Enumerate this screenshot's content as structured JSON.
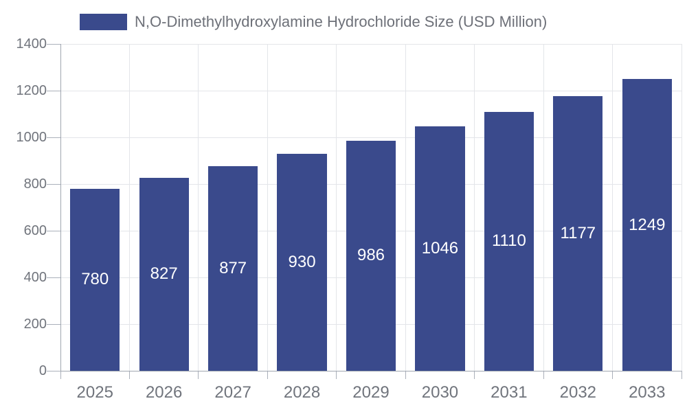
{
  "legend": {
    "label": "N,O-Dimethylhydroxylamine Hydrochloride Size (USD Million)"
  },
  "chart_data": {
    "type": "bar",
    "title": "N,O-Dimethylhydroxylamine Hydrochloride Size (USD Million)",
    "categories": [
      "2025",
      "2026",
      "2027",
      "2028",
      "2029",
      "2030",
      "2031",
      "2032",
      "2033"
    ],
    "values": [
      780,
      827,
      877,
      930,
      986,
      1046,
      1110,
      1177,
      1249
    ],
    "xlabel": "",
    "ylabel": "",
    "ylim": [
      0,
      1400
    ],
    "y_ticks": [
      0,
      200,
      400,
      600,
      800,
      1000,
      1200,
      1400
    ],
    "grid": true,
    "legend_position": "top",
    "value_label_position": "inside-center"
  },
  "colors": {
    "bar": "#3a4a8c",
    "value_label": "#ffffff",
    "grid_line": "#e3e5e9",
    "axis_line": "#a0a6b0",
    "tick": "#aab0ba",
    "label_text": "#70747c",
    "title_text": "#6d7078",
    "background": "#ffffff"
  }
}
